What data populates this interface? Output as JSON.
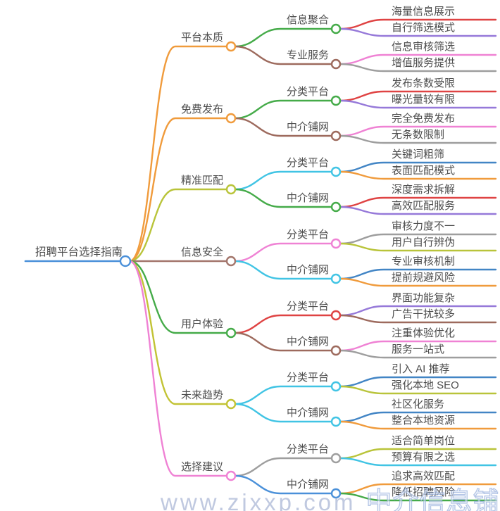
{
  "canvas": {
    "background": "#ffffff",
    "text_color": "#4d4d4d"
  },
  "watermark": {
    "url_part": "www.zjxxp.com",
    "cn_part": "中介信息铺网"
  },
  "mindmap": {
    "root": {
      "label": "招聘平台选择指南",
      "color": "#4a90d9"
    },
    "branches": [
      {
        "label": "平台本质",
        "color": "#f09b3c",
        "children": [
          {
            "label": "信息聚合",
            "color": "#45ab49",
            "leaves": [
              {
                "label": "海量信息展示",
                "color": "#df4343"
              },
              {
                "label": "自行筛选模式",
                "color": "#9679d9"
              }
            ]
          },
          {
            "label": "专业服务",
            "color": "#9d6a5d",
            "leaves": [
              {
                "label": "信息审核筛选",
                "color": "#ef82d4"
              },
              {
                "label": "增值服务提供",
                "color": "#9e9e9e"
              }
            ]
          }
        ]
      },
      {
        "label": "免费发布",
        "color": "#f09b3c",
        "children": [
          {
            "label": "分类平台",
            "color": "#45ab49",
            "leaves": [
              {
                "label": "发布条数受限",
                "color": "#df4343"
              },
              {
                "label": "曝光量较有限",
                "color": "#9679d9"
              }
            ]
          },
          {
            "label": "中介铺网",
            "color": "#9d6a5d",
            "leaves": [
              {
                "label": "完全免费发布",
                "color": "#ef82d4"
              },
              {
                "label": "无条数限制",
                "color": "#9e9e9e"
              }
            ]
          }
        ]
      },
      {
        "label": "精准匹配",
        "color": "#b9c43a",
        "children": [
          {
            "label": "分类平台",
            "color": "#41c4e4",
            "leaves": [
              {
                "label": "关键词粗筛",
                "color": "#4285c5"
              },
              {
                "label": "表面匹配模式",
                "color": "#f09b3c"
              }
            ]
          },
          {
            "label": "中介铺网",
            "color": "#45ab49",
            "leaves": [
              {
                "label": "深度需求拆解",
                "color": "#df4343"
              },
              {
                "label": "高效匹配服务",
                "color": "#9679d9"
              }
            ]
          }
        ]
      },
      {
        "label": "信息安全",
        "color": "#a3766c",
        "children": [
          {
            "label": "分类平台",
            "color": "#ef82d4",
            "leaves": [
              {
                "label": "审核力度不一",
                "color": "#9e9e9e"
              },
              {
                "label": "用户自行辨伪",
                "color": "#b9c43a"
              }
            ]
          },
          {
            "label": "中介铺网",
            "color": "#41c4e4",
            "leaves": [
              {
                "label": "专业审核机制",
                "color": "#4285c5"
              },
              {
                "label": "提前规避风险",
                "color": "#f09b3c"
              }
            ]
          }
        ]
      },
      {
        "label": "用户体验",
        "color": "#45ab49",
        "children": [
          {
            "label": "分类平台",
            "color": "#df4343",
            "leaves": [
              {
                "label": "界面功能复杂",
                "color": "#9679d9"
              },
              {
                "label": "广告干扰较多",
                "color": "#9d6a5d"
              }
            ]
          },
          {
            "label": "中介铺网",
            "color": "#9d6a5d",
            "leaves": [
              {
                "label": "注重体验优化",
                "color": "#ef82d4"
              },
              {
                "label": "服务一站式",
                "color": "#9e9e9e"
              }
            ]
          }
        ]
      },
      {
        "label": "未来趋势",
        "color": "#c2c335",
        "children": [
          {
            "label": "分类平台",
            "color": "#41c4e4",
            "leaves": [
              {
                "label": "引入 AI 推荐",
                "color": "#4285c5"
              },
              {
                "label": "强化本地 SEO",
                "color": "#b9c43a"
              }
            ]
          },
          {
            "label": "中介铺网",
            "color": "#41c4e4",
            "leaves": [
              {
                "label": "社区化服务",
                "color": "#4285c5"
              },
              {
                "label": "整合本地资源",
                "color": "#f09b3c"
              }
            ]
          }
        ]
      },
      {
        "label": "选择建议",
        "color": "#ef82d4",
        "children": [
          {
            "label": "分类平台",
            "color": "#9e9e9e",
            "leaves": [
              {
                "label": "适合简单岗位",
                "color": "#b9c43a"
              },
              {
                "label": "预算有限之选",
                "color": "#41c4e4"
              }
            ]
          },
          {
            "label": "中介铺网",
            "color": "#4a90d9",
            "leaves": [
              {
                "label": "追求高效匹配",
                "color": "#f09b3c"
              },
              {
                "label": "降低招聘风险",
                "color": "#45ab49"
              }
            ]
          }
        ]
      }
    ]
  }
}
